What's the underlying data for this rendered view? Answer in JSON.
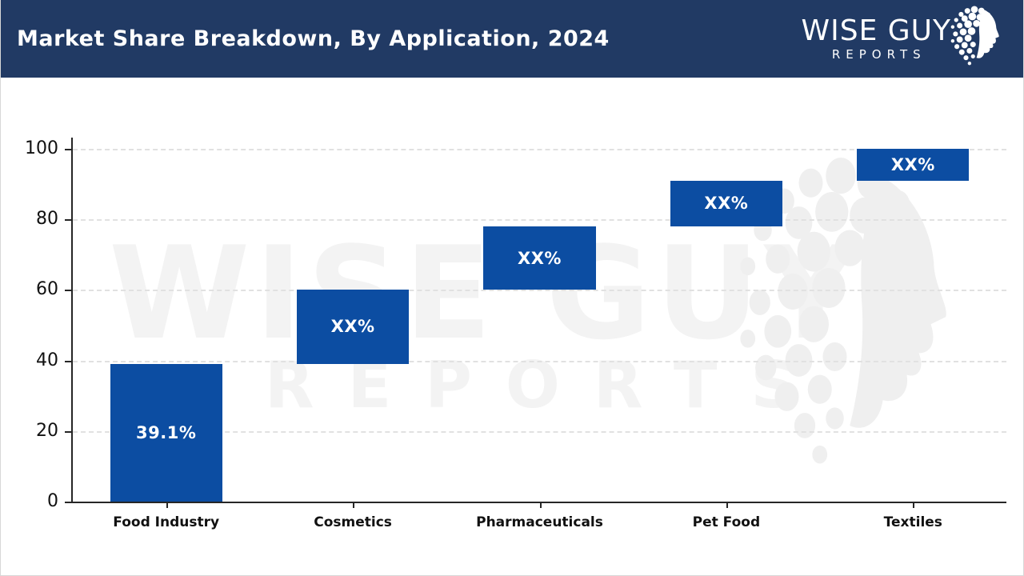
{
  "header": {
    "title": "Market Share Breakdown, By Application, 2024",
    "bg_color": "#213a64",
    "logo": {
      "line1": "WISE GUY",
      "line2": "REPORTS"
    }
  },
  "watermark": {
    "line1": "WISE GUY",
    "line2": "REPORTS",
    "color": "#f3f3f3"
  },
  "chart_data": {
    "type": "bar",
    "subtype": "waterfall",
    "title": "Market Share Breakdown, By Application, 2024",
    "xlabel": "",
    "ylabel": "",
    "ylim": [
      0,
      100
    ],
    "yticks": [
      0,
      20,
      40,
      60,
      80,
      100
    ],
    "grid": "horizontal-dashed",
    "grid_color": "#e1e1e1",
    "bar_color": "#0c4da2",
    "label_color": "#ffffff",
    "legend": "none",
    "categories": [
      "Food Industry",
      "Cosmetics",
      "Pharmaceuticals",
      "Pet Food",
      "Textiles"
    ],
    "segments": [
      {
        "category": "Food Industry",
        "start": 0,
        "end": 39.1,
        "label": "39.1%"
      },
      {
        "category": "Cosmetics",
        "start": 39.1,
        "end": 60,
        "label": "XX%"
      },
      {
        "category": "Pharmaceuticals",
        "start": 60,
        "end": 78,
        "label": "XX%"
      },
      {
        "category": "Pet Food",
        "start": 78,
        "end": 91,
        "label": "XX%"
      },
      {
        "category": "Textiles",
        "start": 91,
        "end": 100,
        "label": "XX%"
      }
    ]
  }
}
